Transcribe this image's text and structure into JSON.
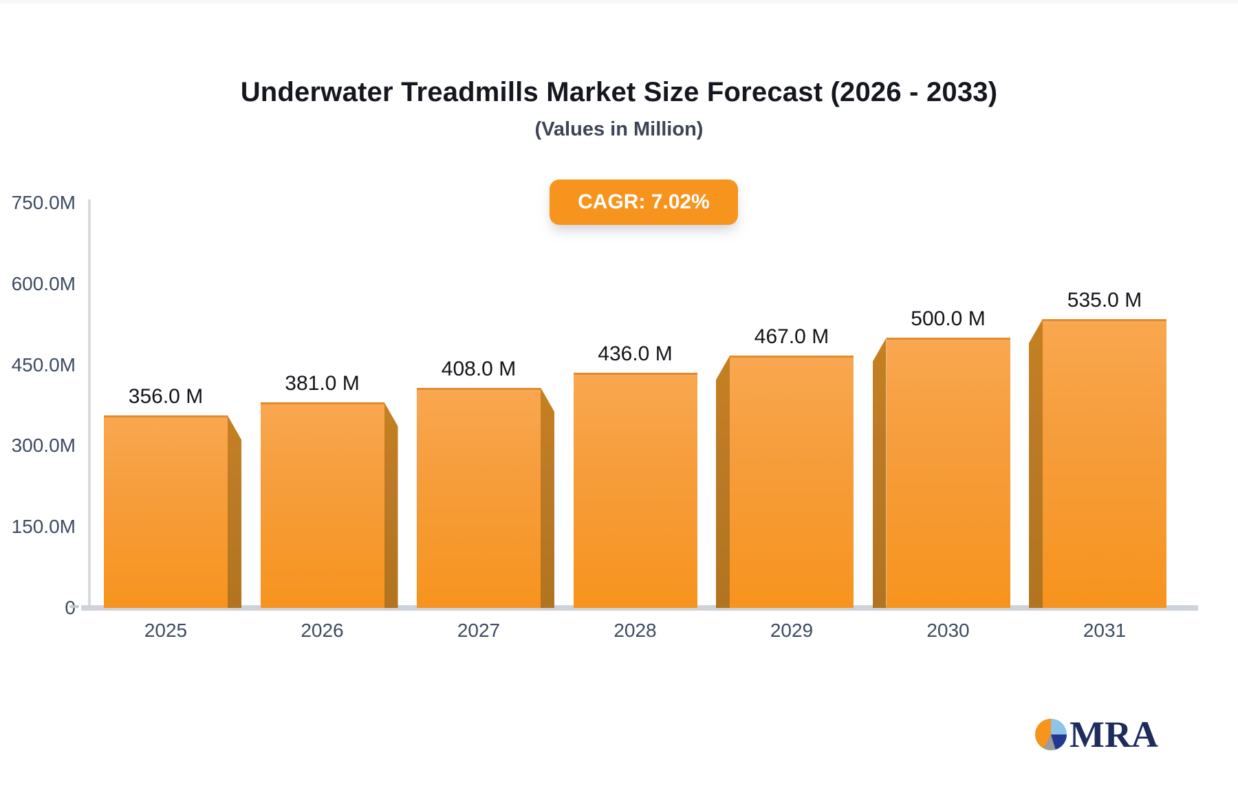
{
  "title": "Underwater Treadmills Market Size Forecast (2026 - 2033)",
  "subtitle": "(Values in Million)",
  "cagr_badge": "CAGR: 7.02%",
  "logo": {
    "text": "MRA"
  },
  "colors": {
    "bar_top": "#f9a750",
    "bar_bottom": "#f7941e",
    "bar_side": "#bc7a26",
    "badge_bg": "#f7941e",
    "axis": "#d7dade",
    "tick_text": "#3c4b61",
    "value_text": "#101318",
    "logo_navy": "#1d2c5b",
    "logo_lightblue": "#8fc3e8",
    "logo_gray": "#9c9c9c"
  },
  "chart_data": {
    "type": "bar",
    "categories": [
      "2025",
      "2026",
      "2027",
      "2028",
      "2029",
      "2030",
      "2031"
    ],
    "values": [
      356,
      381,
      408,
      436,
      467,
      500,
      535
    ],
    "value_labels": [
      "356.0 M",
      "381.0 M",
      "408.0 M",
      "436.0 M",
      "467.0 M",
      "500.0 M",
      "535.0 M"
    ],
    "title": "Underwater Treadmills Market Size Forecast (2026 - 2033)",
    "subtitle": "(Values in Million)",
    "annotation": "CAGR: 7.02%",
    "xlabel": "",
    "ylabel": "",
    "ylim": [
      0,
      750
    ],
    "grid": false,
    "legend": false,
    "y_ticks": [
      {
        "label": "750.0M",
        "value": 750
      },
      {
        "label": "600.0M",
        "value": 600
      },
      {
        "label": "450.0M",
        "value": 450
      },
      {
        "label": "300.0M",
        "value": 300
      },
      {
        "label": "150.0M",
        "value": 150
      },
      {
        "label": "0",
        "value": 0
      }
    ]
  }
}
